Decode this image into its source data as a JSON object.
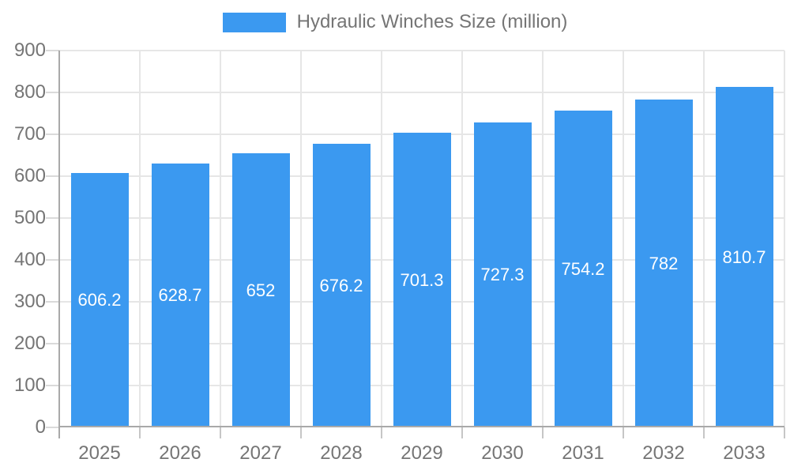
{
  "chart_data": {
    "type": "bar",
    "title": "",
    "legend": {
      "label": "Hydraulic Winches Size (million)",
      "position": "top-center"
    },
    "categories": [
      "2025",
      "2026",
      "2027",
      "2028",
      "2029",
      "2030",
      "2031",
      "2032",
      "2033"
    ],
    "values": [
      606.2,
      628.7,
      652,
      676.2,
      701.3,
      727.3,
      754.2,
      782,
      810.7
    ],
    "xlabel": "",
    "ylabel": "",
    "ylim": [
      0,
      900
    ],
    "ytick_step": 100,
    "grid": "on",
    "value_labels_position": "inside-center",
    "colors": {
      "bar": "#3B99F0",
      "axis_text": "#757575",
      "bar_value_text": "#ffffff",
      "gridline": "#e6e6e6",
      "axis_line": "#a9a9a9",
      "background": "#ffffff"
    }
  }
}
